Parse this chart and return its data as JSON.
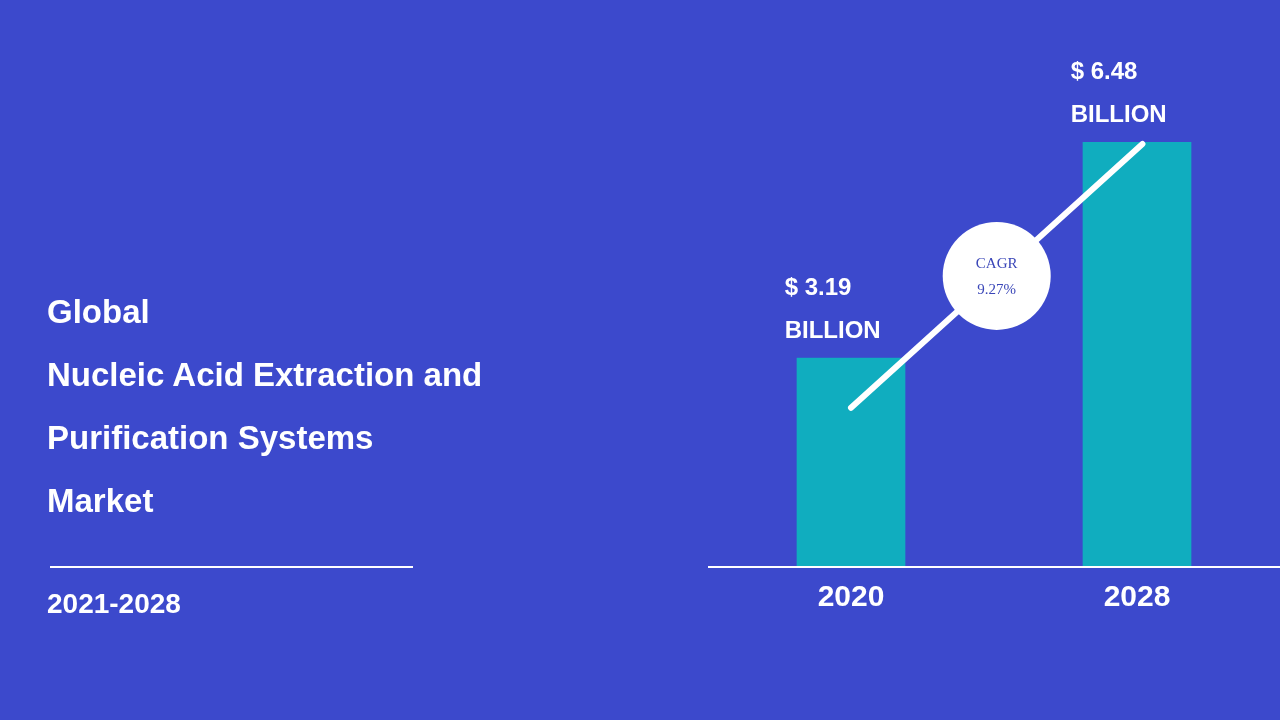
{
  "chart_data": {
    "type": "bar",
    "title": "Global\nNucleic Acid Extraction and\nPurification Systems\nMarket",
    "subtitle": "2021-2028",
    "categories": [
      "2020",
      "2028"
    ],
    "values": [
      3.19,
      6.48
    ],
    "color": "#10adbf",
    "value_labels": [
      "$ 3.19\nBILLION",
      "$ 6.48\nBILLION"
    ],
    "annotations": [
      "CAGR 9.27%"
    ]
  }
}
